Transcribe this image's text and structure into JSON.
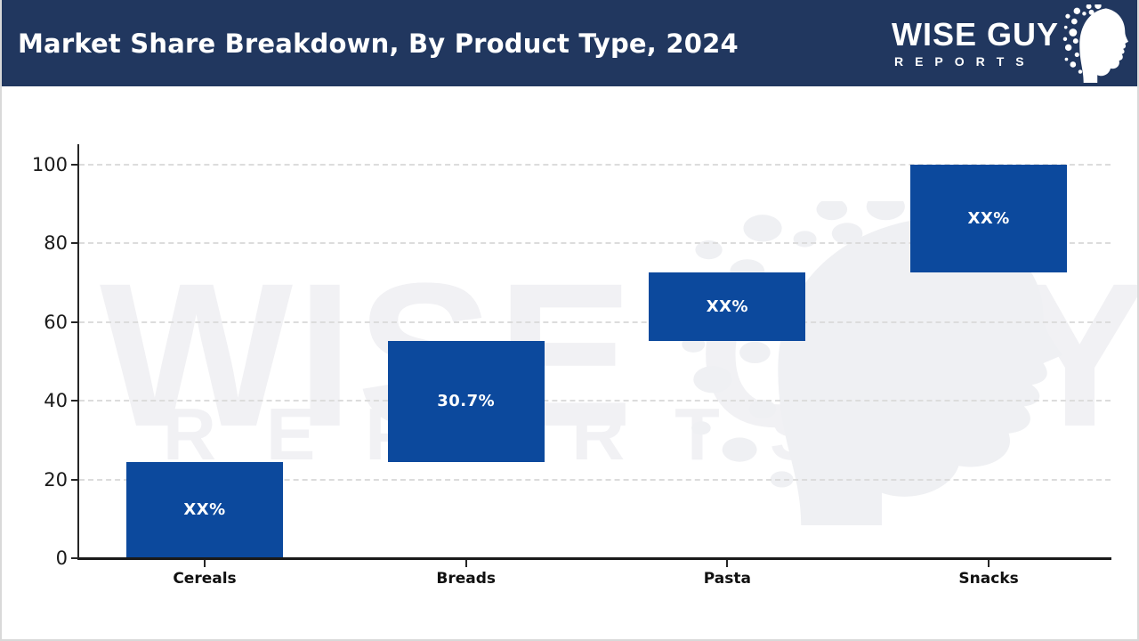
{
  "header": {
    "title": "Market Share Breakdown, By Product Type, 2024",
    "bg_color": "#21375f",
    "logo": {
      "name": "WISE GUY",
      "tagline": "REPORTS"
    }
  },
  "watermark": {
    "name": "WISE GUY",
    "tagline": "REPORTS"
  },
  "chart_data": {
    "type": "bar",
    "subtype": "floating-waterfall-segments",
    "title": "Market Share Breakdown, By Product Type, 2024",
    "categories": [
      "Cereals",
      "Breads",
      "Pasta",
      "Snacks"
    ],
    "segments": [
      {
        "category": "Cereals",
        "start": 0,
        "end": 24.5,
        "label": "XX%"
      },
      {
        "category": "Breads",
        "start": 24.5,
        "end": 55.2,
        "label": "30.7%"
      },
      {
        "category": "Pasta",
        "start": 55.2,
        "end": 72.6,
        "label": "XX%"
      },
      {
        "category": "Snacks",
        "start": 72.6,
        "end": 100,
        "label": "XX%"
      }
    ],
    "ylim": [
      0,
      100
    ],
    "yticks": [
      0,
      20,
      40,
      60,
      80,
      100
    ],
    "xlabel": "",
    "ylabel": "",
    "grid": "horizontal-dashed",
    "legend": "none",
    "colors": {
      "bar": "#0c499d",
      "bar_label": "#ffffff",
      "axis": "#1a1a1a",
      "gridline": "#dcdcdc",
      "header_bg": "#21375f",
      "watermark": "#f1f1f4"
    }
  }
}
